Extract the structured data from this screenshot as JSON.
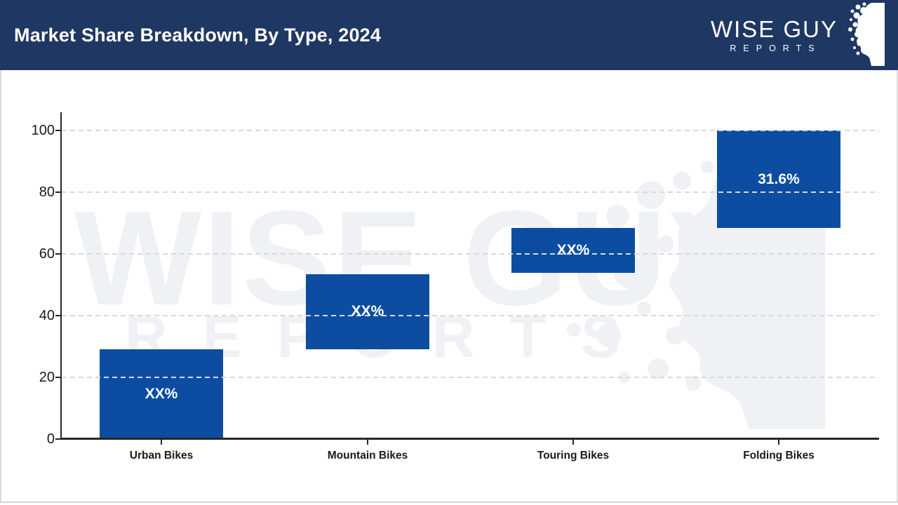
{
  "header": {
    "title": "Market Share Breakdown, By Type, 2024",
    "logo": {
      "line1": "WISE GUY",
      "line2": "REPORTS"
    }
  },
  "watermark": {
    "line1": "WISE GUY",
    "line2": "REPORTS"
  },
  "colors": {
    "header_bg": "#1f3763",
    "bar": "#0c4da2",
    "grid": "#d9d9d9",
    "axis": "#262626",
    "text": "#1a1a1a",
    "bar_label_text": "#ffffff",
    "watermark": "#f0f1f4"
  },
  "chart_data": {
    "type": "bar",
    "subtype": "waterfall",
    "title": "Market Share Breakdown, By Type, 2024",
    "categories": [
      "Urban Bikes",
      "Mountain Bikes",
      "Touring Bikes",
      "Folding Bikes"
    ],
    "segments": [
      {
        "category": "Urban Bikes",
        "start": 0,
        "end": 29.2,
        "label": "XX%"
      },
      {
        "category": "Mountain Bikes",
        "start": 29.2,
        "end": 53.5,
        "label": "XX%"
      },
      {
        "category": "Touring Bikes",
        "start": 53.8,
        "end": 68.3,
        "label": "XX%"
      },
      {
        "category": "Folding Bikes",
        "start": 68.4,
        "end": 100,
        "label": "31.6%"
      }
    ],
    "yticks": [
      0,
      20,
      40,
      60,
      80,
      100
    ],
    "ylim": [
      0,
      106
    ],
    "xlabel": "",
    "ylabel": "",
    "grid": "dashed-horizontal",
    "legend": "none"
  }
}
